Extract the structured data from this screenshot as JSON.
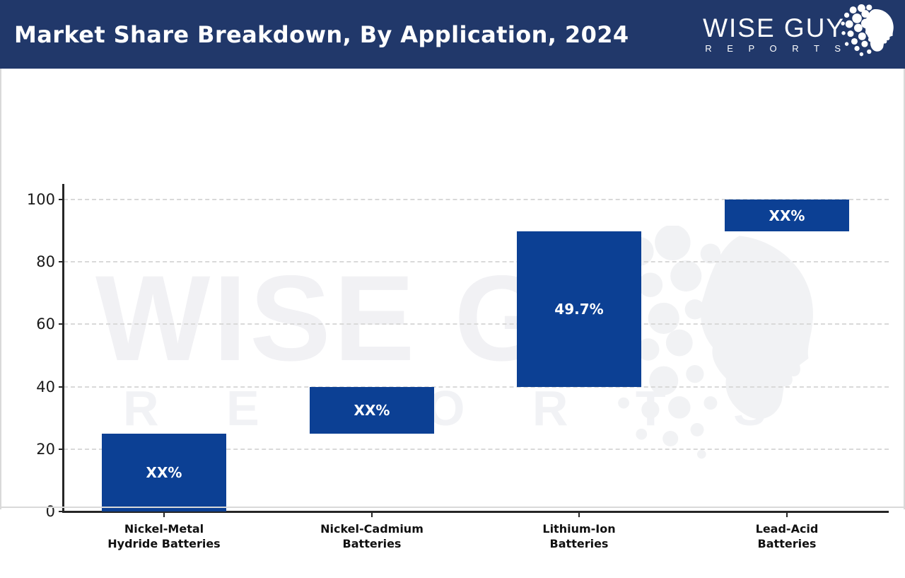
{
  "header": {
    "title": "Market Share Breakdown, By Application, 2024",
    "logo": {
      "brand": "WISE GUY",
      "sub": "R E P O R T S"
    }
  },
  "watermark": {
    "text1": "WISE GU",
    "text2": "R E P O R T S"
  },
  "chart_data": {
    "type": "bar",
    "subtype": "floating-waterfall",
    "title": "Market Share Breakdown, By Application, 2024",
    "categories": [
      [
        "Nickel-Metal",
        "Hydride Batteries"
      ],
      [
        "Nickel-Cadmium",
        "Batteries"
      ],
      [
        "Lithium-Ion",
        "Batteries"
      ],
      [
        "Lead-Acid",
        "Batteries"
      ]
    ],
    "bars": [
      {
        "start": 0,
        "end": 25,
        "label": "XX%"
      },
      {
        "start": 25,
        "end": 40,
        "label": "XX%"
      },
      {
        "start": 40,
        "end": 89.7,
        "label": "49.7%"
      },
      {
        "start": 89.7,
        "end": 100,
        "label": "XX%"
      }
    ],
    "yticks": [
      0,
      20,
      40,
      60,
      80,
      100
    ],
    "ylim": [
      0,
      105
    ],
    "xlabel": "",
    "ylabel": "",
    "legend": "none",
    "grid": "horizontal-dashed"
  },
  "colors": {
    "header_bg": "#21386a",
    "bar": "#0c4094",
    "grid": "#d9d9d9",
    "axis": "#262626",
    "watermark": "#f1f1f4"
  }
}
